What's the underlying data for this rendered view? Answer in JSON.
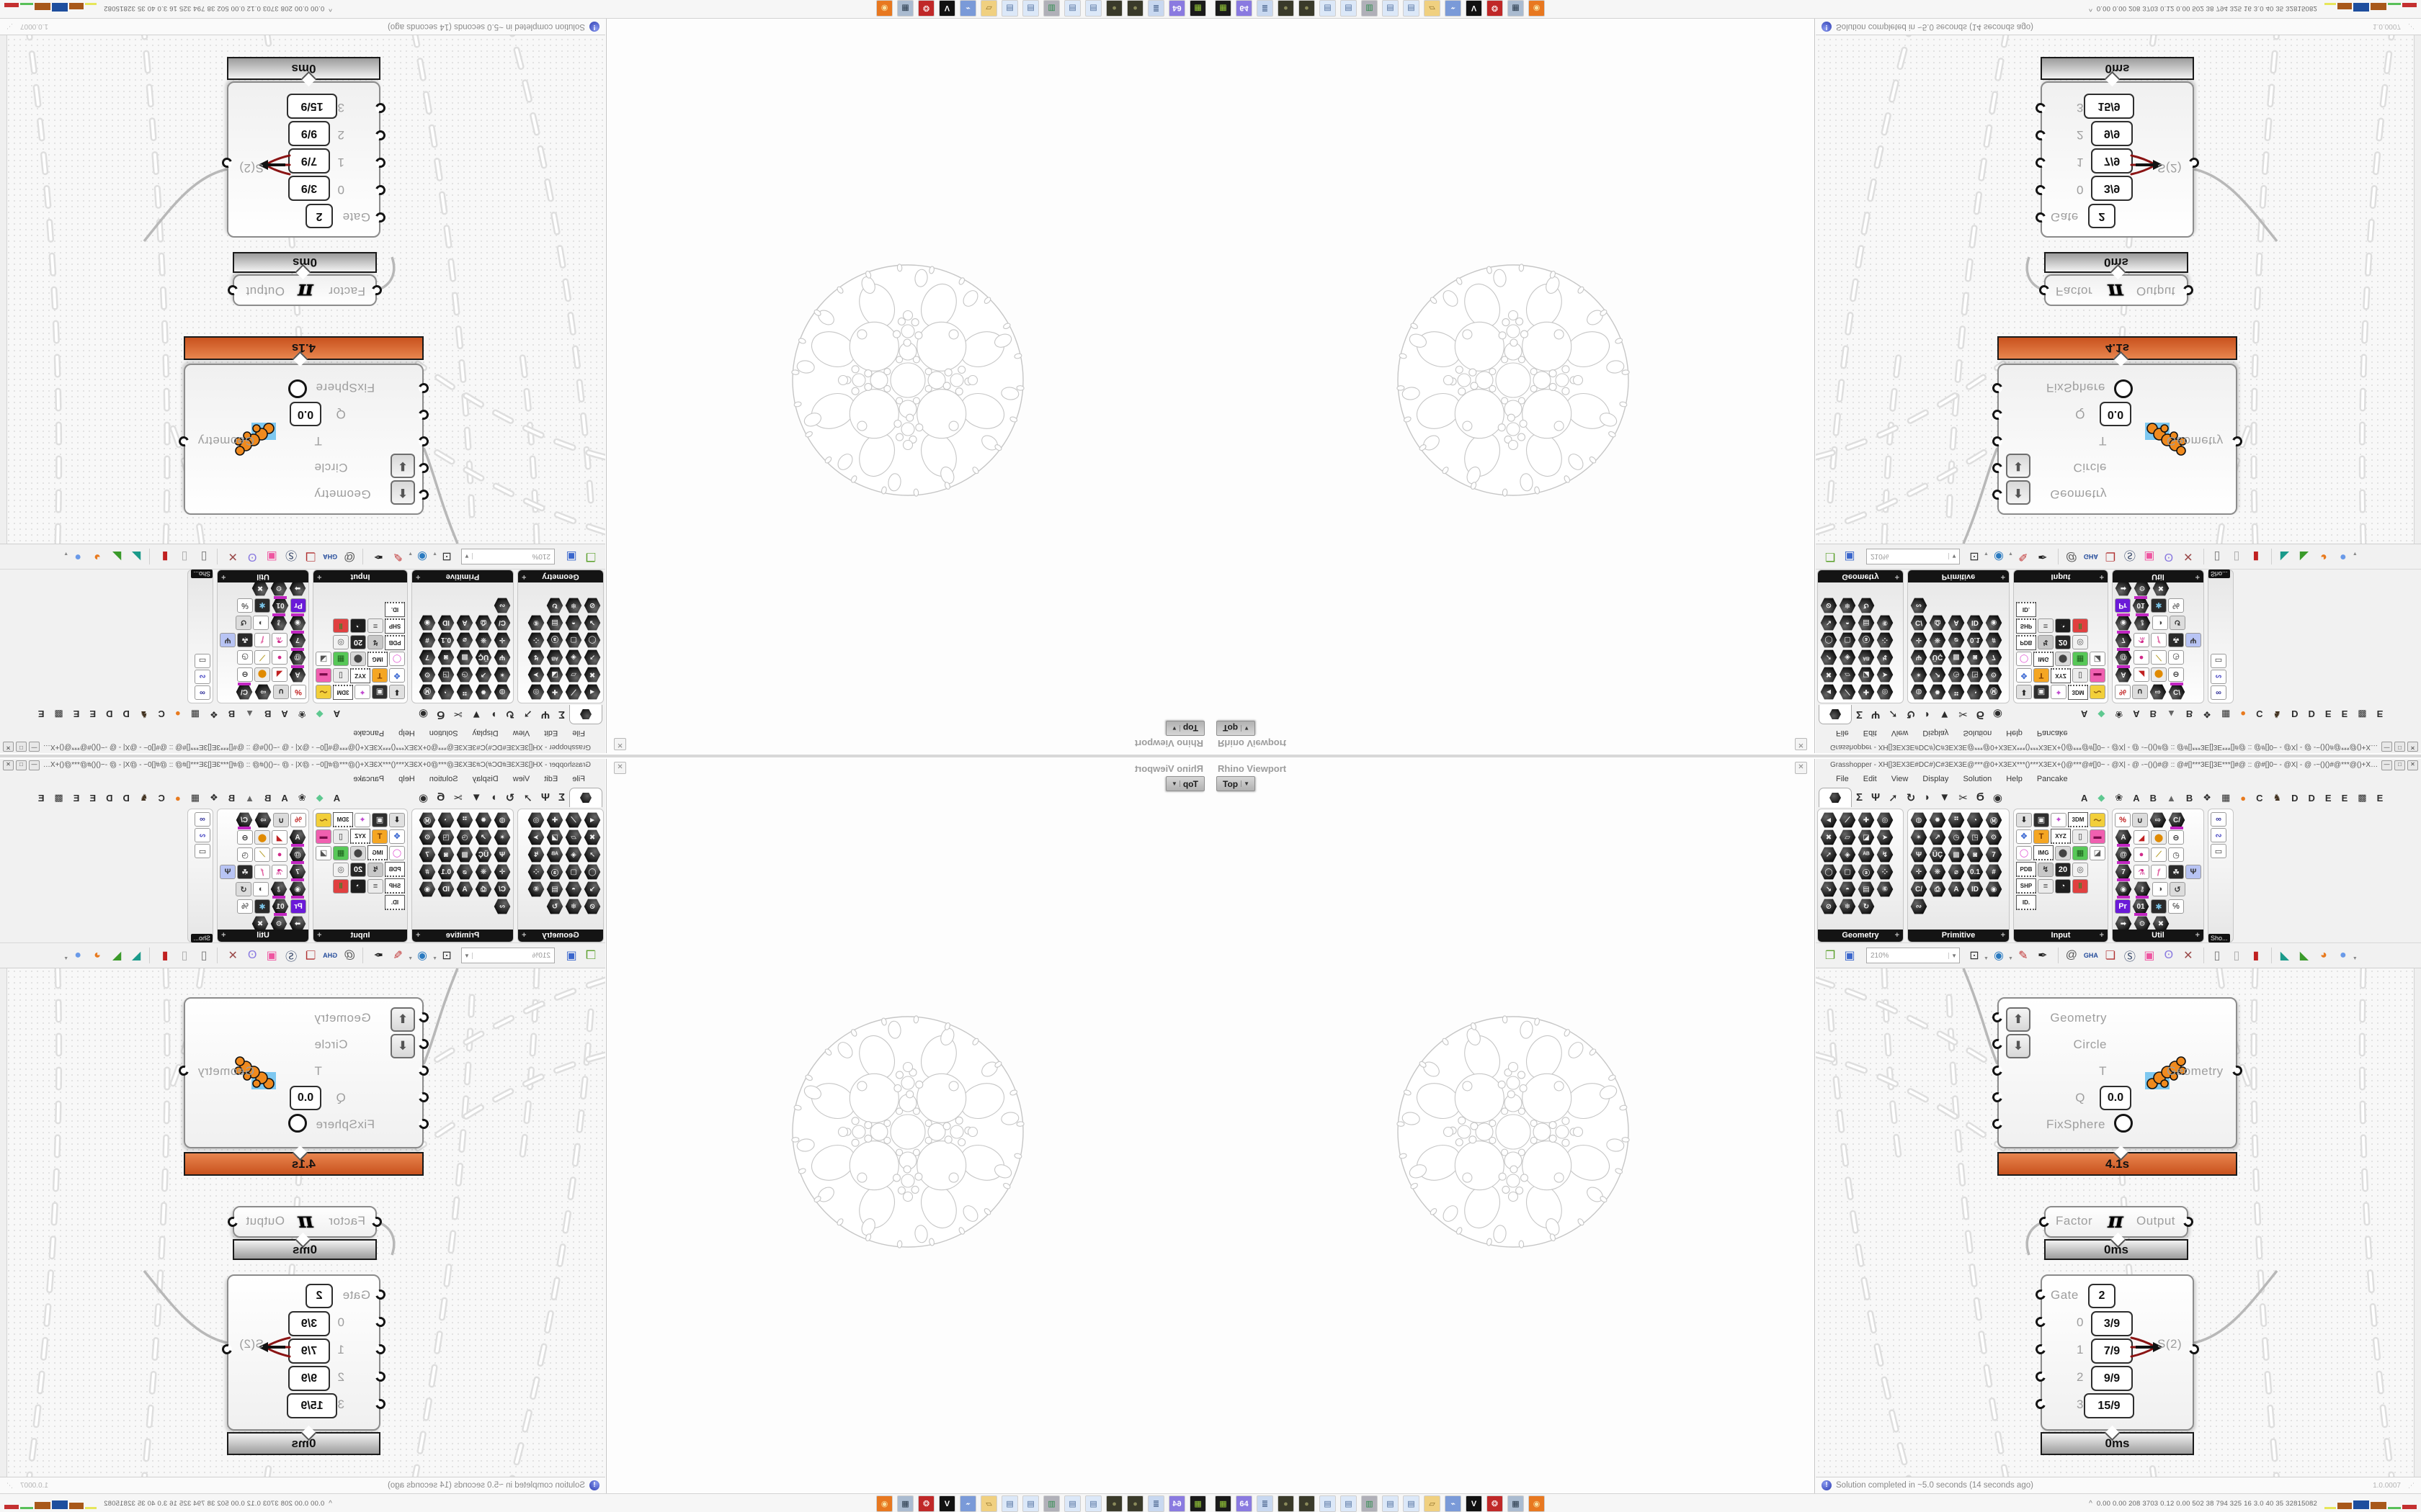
{
  "window": {
    "title": "Grasshopper - XH[]3EX3E#DC#)C#3EX3E@***@0+X3EX***()***X3EX+()@***@#[]0~ - @X| - @ -~()()#@ :: @#[]***3E[]3E***[]#@ :: @#[]0~ - @X| - @ -~()()#@***@()+X3EX***()***...",
    "buttons": {
      "minimize": "—",
      "maximize": "□",
      "close": "✕"
    }
  },
  "viewport": {
    "title": "Rhino Viewport",
    "view_button": "Top",
    "view_dropdown": "▼",
    "close_button": "✕"
  },
  "menu": {
    "items": [
      "File",
      "Edit",
      "View",
      "Display",
      "Solution",
      "Help",
      "Pancake"
    ]
  },
  "tabs": {
    "standard": [
      "Σ",
      "Ψ",
      "➚",
      "↻",
      "◗",
      "▼",
      "✂",
      "Ϭ",
      "◉"
    ],
    "plugins": [
      "A",
      "◆",
      "❀",
      "A",
      "B",
      "▲",
      "B",
      "❖",
      "▦",
      "●",
      "C",
      "♞",
      "D",
      "D",
      "E",
      "E",
      "▩",
      "E"
    ]
  },
  "palettes": {
    "panels": [
      {
        "label": "Geometry",
        "expand": "+",
        "width": 120,
        "icons": [
          "h|◄",
          "h|⟋",
          "h|✚",
          "h|◎",
          "h|✖",
          "h|▱",
          "h|◪",
          "h|➤",
          "h|➚",
          "h|◈",
          "h|ᴬᴮ",
          "h|↯",
          "h|◯",
          "h|▢",
          "h|ⓐ",
          "h|⁘",
          "h|↘",
          "h|◓",
          "h|▤",
          "h|⑥",
          "h|⊘",
          "h|❄",
          "h|↻"
        ]
      },
      {
        "label": "Primitive",
        "expand": "+",
        "width": 142,
        "icons": [
          "h|◍",
          "h|✹",
          "h|⠛",
          "h|◔",
          "h|Ⓜ",
          "h|✴",
          "h|↗",
          "h|◷",
          "h|◳",
          "h|⚙",
          "h|Ψ",
          "h|ÜÇ",
          "h|▩",
          "h|◙",
          "h|7",
          "h|✛",
          "h|❋",
          "h|⌀",
          "h|0.1",
          "h|#",
          "h|C/",
          "h|⎙",
          "h|A",
          "h|ID",
          "h|◉",
          "h|∾"
        ]
      },
      {
        "label": "Input",
        "expand": "+",
        "width": 132,
        "icons": [
          "s|⬇|#e0e0e0|#222",
          "s|▣|#2f2f2f|#eee",
          "s|✦|#ffffff|#c04ad0",
          "t|3DM",
          "s|〜|#f2cf3a|#8a5a10",
          "s|✥|#ffffff|#2255cc",
          "s|T|#f5a623|#7a3a00",
          "t|XYZ",
          "s|▯|#ececec|#333333",
          "s|▬|#f060b0|#7a0a4a",
          "s|◯|#ffffff|#e04ad0",
          "t|IMG",
          "s|⬤|#d8d8d8|#444444",
          "s|▦|#58c858|#1a5a1a",
          "s|◪|#ffffff|#555555",
          "t|PDB",
          "s|↯|#c8c8c8|#333333",
          "s|20|#262626|#ffffff",
          "s|◎|#f2f2f2|#555555",
          "t|SHP",
          "s|≡|#ececec|#444444",
          "s|◔|#1e1e1e|#eeeeee",
          "s|‖|#e04040|#2a8a2a",
          "t|ID."
        ]
      },
      {
        "label": "Util",
        "expand": "+",
        "width": 128,
        "icons": [
          "s|%|#ffffff|#c02020",
          "s|∪|#dcdcdc|#333333",
          "h|⇨",
          "m|C/",
          "m|A",
          "s|◢|#ffffff|#c02020",
          "s|⬤|#ececec|#e08a00",
          "s|⊖|#ffffff|#333333",
          "m|@",
          "s|●|#ffffff|#d02a8a",
          "s|⟋|#ffffff|#b8a030",
          "s|◷|#ffffff|#333333",
          "m|7",
          "s|⚗|#ffffff|#d02a8a",
          "s|ƒ|#ffffff|#e060a0",
          "s|☘|#2a2a2a|#eeeeee",
          "s|Ψ|#b8c4f4|#333333",
          "m|◉",
          "m|⚷",
          "s|◑|#ffffff|#444444",
          "s|↺|#dcdcdc|#333333",
          "s|Pr|#6a1ad8|#ffffff",
          "m|01",
          "s|✱|#2a2a2a|#7ac4e8",
          "s|℅|#ffffff|#555555",
          "h|➡",
          "m|⚙",
          "m|✖"
        ]
      }
    ],
    "overflow": {
      "icons": [
        "s|∞|#ffffff|#333399",
        "s|∾|#ffffff|#4040c0",
        "s|▭|#ffffff|#333333"
      ],
      "tooltip": "Sho..."
    }
  },
  "toolbar": {
    "zoom_value": "210%",
    "icons": [
      {
        "name": "zoom-extents",
        "g": "⊡",
        "c": "#333333",
        "dd": true
      },
      {
        "name": "preview-eye",
        "g": "◉",
        "c": "#2a7ac0",
        "dd": true
      },
      {
        "name": "sketch-pencil",
        "g": "✎",
        "c": "#c03030"
      },
      {
        "name": "ink-bottle",
        "g": "✒",
        "c": "#222222"
      },
      {
        "name": "sep",
        "g": "",
        "c": ""
      },
      {
        "name": "at-box",
        "g": "@",
        "c": "#555555"
      },
      {
        "name": "gha-assembly",
        "g": "GHA",
        "c": "#224a9a"
      },
      {
        "name": "remote-window",
        "g": "❏",
        "c": "#b03030"
      },
      {
        "name": "s-magnifier",
        "g": "Ⓢ",
        "c": "#334466"
      },
      {
        "name": "pink-bag",
        "g": "▣",
        "c": "#ee55a0"
      },
      {
        "name": "galapagos-balloon",
        "g": "ʘ",
        "c": "#8a7ae0"
      },
      {
        "name": "cross-wires",
        "g": "✕",
        "c": "#9a4a4a"
      },
      {
        "name": "sep",
        "g": "",
        "c": ""
      },
      {
        "name": "cylinder-sketch",
        "g": "▯",
        "c": "#777777"
      },
      {
        "name": "cylinder-wire",
        "g": "▯",
        "c": "#aaaaaa"
      },
      {
        "name": "cylinder-red",
        "g": "▮",
        "c": "#c02020"
      },
      {
        "name": "sep",
        "g": "",
        "c": ""
      },
      {
        "name": "cone-teal",
        "g": "◣",
        "c": "#1a9a8a"
      },
      {
        "name": "cone-green",
        "g": "◣",
        "c": "#3a9a2a"
      },
      {
        "name": "sphere-orange",
        "g": "◕",
        "c": "#e87a1e"
      },
      {
        "name": "sphere-blue",
        "g": "●",
        "c": "#6a9ae8",
        "dd": true
      }
    ]
  },
  "canvas": {
    "components": {
      "sphere_pack": {
        "inputs": [
          "Geometry",
          "Circle",
          "T",
          "Q",
          "FixSphere"
        ],
        "q_value": "0.0",
        "output": "Geometry",
        "profiler": "4.1s"
      },
      "pi": {
        "input": "Factor",
        "symbol": "π",
        "output": "Output",
        "profiler": "0ms"
      },
      "stream_gate": {
        "gate_label": "Gate",
        "gate_value": "2",
        "rows": [
          [
            "0",
            "3/9"
          ],
          [
            "1",
            "7/9"
          ],
          [
            "2",
            "9/9"
          ],
          [
            "3",
            "15/9"
          ]
        ],
        "output": "S(2)",
        "profiler": "0ms"
      }
    }
  },
  "status_bar": {
    "message": "Solution completed in ~5.0 seconds (14 seconds ago)",
    "version": "1.0.0007"
  },
  "taskbar": {
    "icons": [
      {
        "g": "▦",
        "c": "#9ad03a",
        "bg": "#1a1a1a"
      },
      {
        "g": "64",
        "c": "#ffffff",
        "bg": "#8a7ae0"
      },
      {
        "g": "≣",
        "c": "#44608a",
        "bg": "#c8d8f0"
      },
      {
        "g": "●",
        "c": "#8a8a5a",
        "bg": "#3a3a2a"
      },
      {
        "g": "●",
        "c": "#8a8a5a",
        "bg": "#3a3a2a"
      },
      {
        "g": "▤",
        "c": "#4a6a9a",
        "bg": "#dce8f8"
      },
      {
        "g": "▤",
        "c": "#4a6a9a",
        "bg": "#dce8f8"
      },
      {
        "g": "▥",
        "c": "#2a8a4a",
        "bg": "#b0b0b8"
      },
      {
        "g": "▤",
        "c": "#4a6a9a",
        "bg": "#dce8f8"
      },
      {
        "g": "▤",
        "c": "#4a6a9a",
        "bg": "#dce8f8"
      },
      {
        "g": "▱",
        "c": "#8a6a20",
        "bg": "#f0d080"
      },
      {
        "g": "⌁",
        "c": "#ffffff",
        "bg": "#7a9ad8"
      },
      {
        "g": "V",
        "c": "#ffffff",
        "bg": "#111111"
      },
      {
        "g": "❂",
        "c": "#ffffff",
        "bg": "#c02828"
      },
      {
        "g": "▦",
        "c": "#223344",
        "bg": "#aabbd0"
      },
      {
        "g": "◉",
        "c": "#f8e0a0",
        "bg": "#e87820"
      }
    ],
    "tray": {
      "expander": "^",
      "stats": "0.00  0.00  208  3703 0.12  0.00  502  38  794  325  16  3.0  40  35  32815082",
      "chart": [
        {
          "c": "#e6e65a",
          "w": 16,
          "h": 3
        },
        {
          "c": "#a8581a",
          "w": 20,
          "h": 9
        },
        {
          "c": "#1e4e9e",
          "w": 22,
          "h": 12
        },
        {
          "c": "#a8581a",
          "w": 22,
          "h": 10
        },
        {
          "c": "#58c058",
          "w": 18,
          "h": 3
        },
        {
          "c": "#c43030",
          "w": 20,
          "h": 6
        }
      ]
    }
  },
  "colors": {
    "profiler_busy": "#d9642f",
    "profiler_idle": "#c0c0c0",
    "canvas_bg": "#f8f8f8",
    "wire": "#b8b8b8",
    "chain": "#dedede",
    "sphere_stroke": "#c6c6c6"
  }
}
